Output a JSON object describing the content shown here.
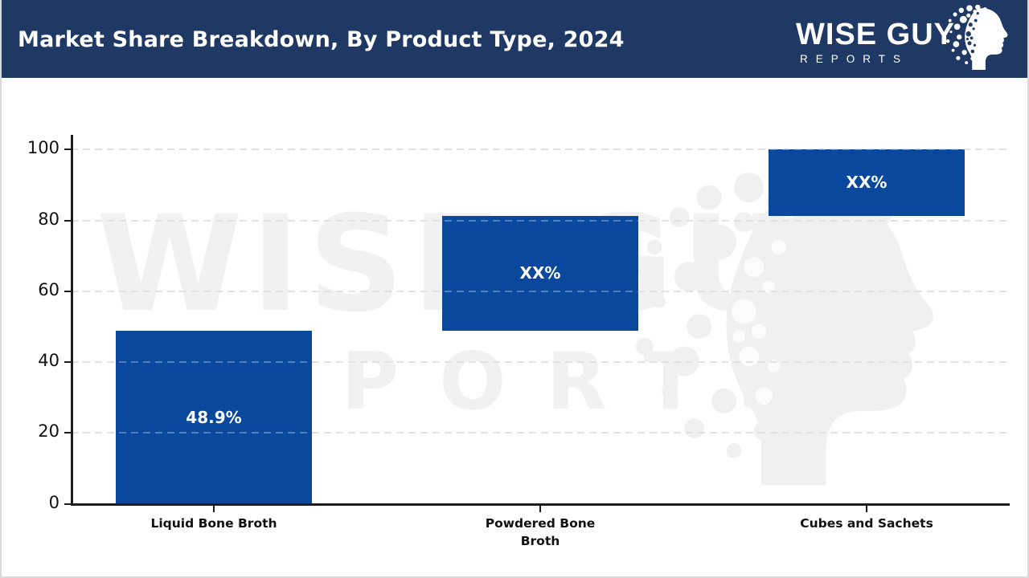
{
  "colors": {
    "header_bg": "#1F3864",
    "bar": "#0A489E",
    "bar_label": "#FFFFFF",
    "gridline": "#DBDBDB",
    "axis": "#1C1C1C",
    "watermark": "#F1F1F1",
    "frame_border": "#D9D9D9",
    "title_text": "#FFFFFF"
  },
  "header": {
    "title": "Market Share Breakdown, By Product Type, 2024",
    "logo": {
      "line1": "WISE GUY",
      "line2": "REPORTS"
    }
  },
  "watermark": {
    "line1": "WISE GUY",
    "line2": "REPORTS"
  },
  "chart_data": {
    "type": "bar",
    "subtype": "floating-segment-waterfall",
    "title": "Market Share Breakdown, By Product Type, 2024",
    "categories": [
      "Liquid Bone Broth",
      "Powdered Bone\nBroth",
      "Cubes and Sachets"
    ],
    "segments": [
      {
        "category": "Liquid Bone Broth",
        "start": 0,
        "end": 48.9,
        "value_label": "48.9%"
      },
      {
        "category": "Powdered Bone Broth",
        "start": 48.9,
        "end": 81.3,
        "value_label": "XX%"
      },
      {
        "category": "Cubes and Sachets",
        "start": 81.3,
        "end": 100,
        "value_label": "XX%"
      }
    ],
    "yticks": [
      0,
      20,
      40,
      60,
      80,
      100
    ],
    "ylim": [
      0,
      104.5
    ],
    "xlabel": "",
    "ylabel": "",
    "grid": "horizontal-dashed",
    "legend": "none",
    "bar_color": "#0A489E"
  }
}
